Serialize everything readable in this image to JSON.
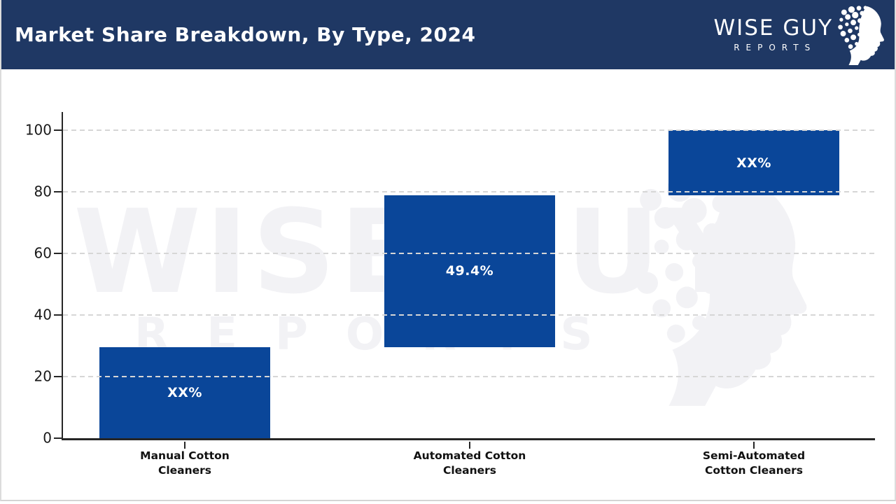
{
  "header": {
    "title": "Market Share Breakdown, By Type, 2024",
    "logo": {
      "line1": "WISE GUY",
      "line2": "REPORTS",
      "icon": "face-profile-dots-icon"
    }
  },
  "watermark": {
    "line1": "WISE GUY",
    "line2": "REPORTS",
    "icon": "face-profile-dots-icon"
  },
  "chart_data": {
    "type": "bar",
    "subtype": "waterfall-segments",
    "title": "Market Share Breakdown, By Type, 2024",
    "categories": [
      "Manual Cotton\nCleaners",
      "Automated Cotton\nCleaners",
      "Semi-Automated\nCotton Cleaners"
    ],
    "series": [
      {
        "name": "Market share (%)",
        "segment_start": [
          0,
          29.6,
          79.0
        ],
        "segment_end": [
          29.6,
          79.0,
          100
        ],
        "values": [
          29.6,
          49.4,
          21.0
        ]
      }
    ],
    "bar_value_labels": [
      "XX%",
      "49.4%",
      "XX%"
    ],
    "yticks": [
      0,
      20,
      40,
      60,
      80,
      100
    ],
    "ylim": [
      0,
      106
    ],
    "xlabel": "",
    "ylabel": "",
    "grid": "horizontal-dashed",
    "legend": "none",
    "colors": {
      "bar": "#0a4699",
      "grid": "#d6d6d6",
      "axis": "#262626",
      "tick_label": "#1a1a1a",
      "bar_label_text": "#ffffff"
    }
  },
  "colors": {
    "header_bg": "#1f3864",
    "header_text": "#ffffff",
    "watermark": "#f2f2f5",
    "page_bg": "#ffffff",
    "frame_border": "#d8d8d8"
  }
}
